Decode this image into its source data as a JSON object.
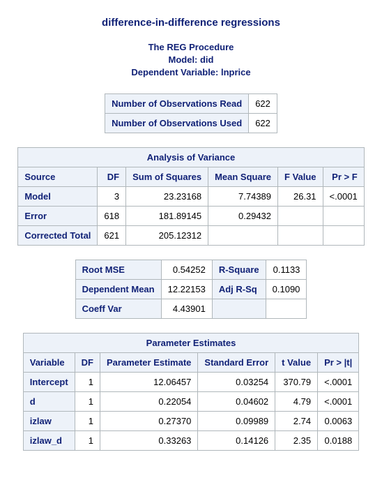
{
  "page": {
    "title": "difference-in-difference regressions",
    "procedure": "The REG Procedure",
    "model": "Model: did",
    "depvar": "Dependent Variable: lnprice"
  },
  "obs": {
    "rows": [
      {
        "label": "Number of Observations Read",
        "value": "622"
      },
      {
        "label": "Number of Observations Used",
        "value": "622"
      }
    ]
  },
  "anova": {
    "caption": "Analysis of Variance",
    "cols": [
      "Source",
      "DF",
      "Sum of Squares",
      "Mean Square",
      "F Value",
      "Pr > F"
    ],
    "rows": [
      {
        "source": "Model",
        "df": "3",
        "ss": "23.23168",
        "ms": "7.74389",
        "f": "26.31",
        "p": "<.0001"
      },
      {
        "source": "Error",
        "df": "618",
        "ss": "181.89145",
        "ms": "0.29432",
        "f": "",
        "p": ""
      },
      {
        "source": "Corrected Total",
        "df": "621",
        "ss": "205.12312",
        "ms": "",
        "f": "",
        "p": ""
      }
    ]
  },
  "fit": {
    "rows": [
      {
        "l1": "Root MSE",
        "v1": "0.54252",
        "l2": "R-Square",
        "v2": "0.1133"
      },
      {
        "l1": "Dependent Mean",
        "v1": "12.22153",
        "l2": "Adj R-Sq",
        "v2": "0.1090"
      },
      {
        "l1": "Coeff Var",
        "v1": "4.43901",
        "l2": "",
        "v2": ""
      }
    ]
  },
  "params": {
    "caption": "Parameter Estimates",
    "cols": [
      "Variable",
      "DF",
      "Parameter Estimate",
      "Standard Error",
      "t Value",
      "Pr > |t|"
    ],
    "rows": [
      {
        "var": "Intercept",
        "df": "1",
        "est": "12.06457",
        "se": "0.03254",
        "t": "370.79",
        "p": "<.0001"
      },
      {
        "var": "d",
        "df": "1",
        "est": "0.22054",
        "se": "0.04602",
        "t": "4.79",
        "p": "<.0001"
      },
      {
        "var": "izlaw",
        "df": "1",
        "est": "0.27370",
        "se": "0.09989",
        "t": "2.74",
        "p": "0.0063"
      },
      {
        "var": "izlaw_d",
        "df": "1",
        "est": "0.33263",
        "se": "0.14126",
        "t": "2.35",
        "p": "0.0188"
      }
    ]
  },
  "style": {
    "header_bg": "#edf2f9",
    "header_text": "#112277",
    "border": "#b0b7bb",
    "body_bg": "#ffffff",
    "data_text": "#000000"
  }
}
